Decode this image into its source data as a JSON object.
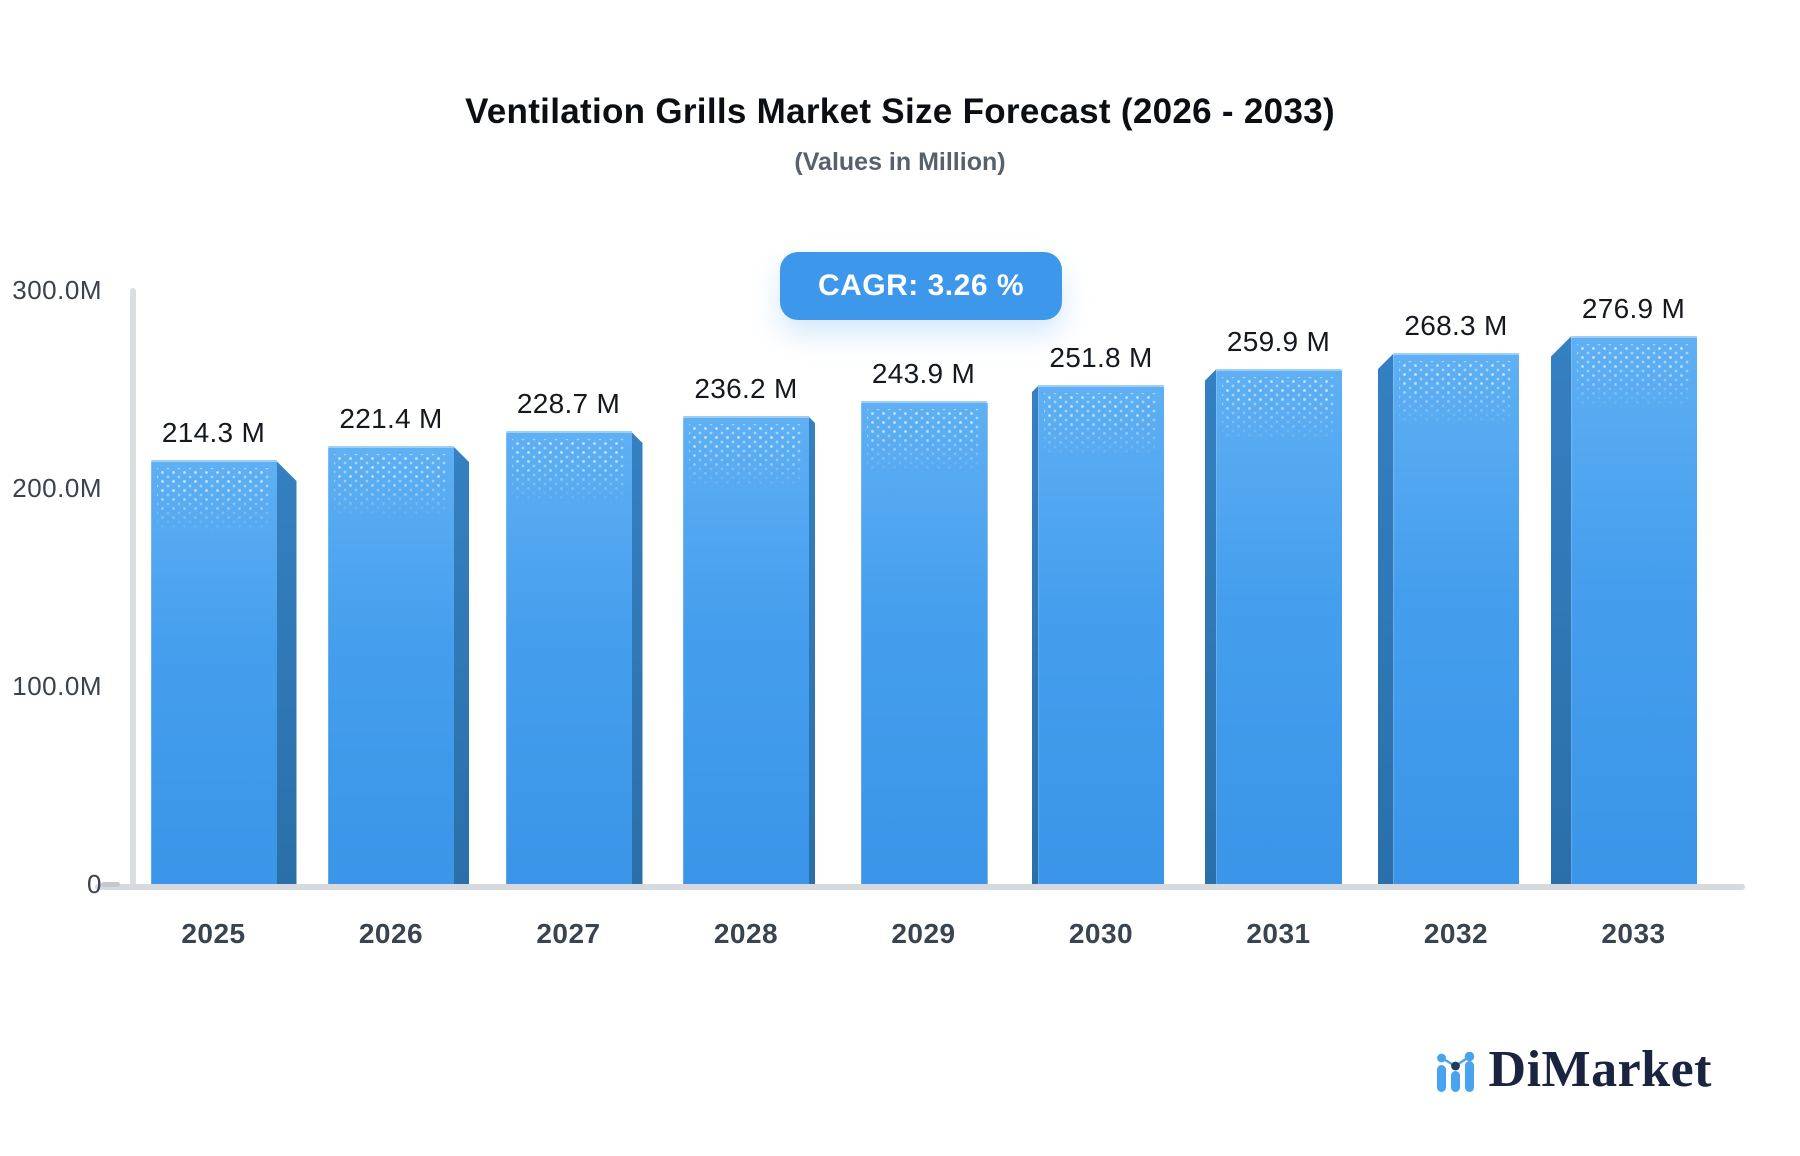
{
  "header": {
    "title": "Ventilation Grills Market Size Forecast (2026 - 2033)",
    "subtitle": "(Values in Million)"
  },
  "badge": {
    "label": "CAGR: 3.26 %"
  },
  "chart_data": {
    "type": "bar",
    "title": "Ventilation Grills Market Size Forecast (2026 - 2033)",
    "subtitle": "(Values in Million)",
    "categories": [
      "2025",
      "2026",
      "2027",
      "2028",
      "2029",
      "2030",
      "2031",
      "2032",
      "2033"
    ],
    "values": [
      214.3,
      221.4,
      228.7,
      236.2,
      243.9,
      251.8,
      259.9,
      268.3,
      276.9
    ],
    "value_labels": [
      "214.3 M",
      "221.4 M",
      "228.7 M",
      "236.2 M",
      "243.9 M",
      "251.8 M",
      "259.9 M",
      "268.3 M",
      "276.9 M"
    ],
    "unit": "Million",
    "xlabel": "",
    "ylabel": "",
    "ylim": [
      0,
      300
    ],
    "yticks": [
      {
        "value": 300,
        "label": "300.0M"
      },
      {
        "value": 200,
        "label": "200.0M"
      },
      {
        "value": 100,
        "label": "100.0M"
      },
      {
        "value": 0,
        "label": "0"
      }
    ],
    "grid": false,
    "legend": false,
    "bar_style": "3d-perspective-center-vanishing",
    "colors": {
      "bar_front_top": "#5fb0f3",
      "bar_front_mid": "#459eed",
      "bar_front_bottom": "#3b95e8",
      "bar_side_top": "#3580c2",
      "bar_side_bottom": "#2a6fa9",
      "axis": "#d8dbe0",
      "value_label": "#14181f",
      "x_tick": "#3a4350",
      "y_tick": "#39424e",
      "badge_bg": "#3d97eb",
      "badge_text": "#ffffff"
    }
  },
  "logo": {
    "text": "DiMarket",
    "icon": "mini-bar-chart-icon",
    "colors": {
      "text": "#1a2440",
      "icon": "#4aa3ee",
      "icon_accent": "#1e3a5f"
    }
  }
}
